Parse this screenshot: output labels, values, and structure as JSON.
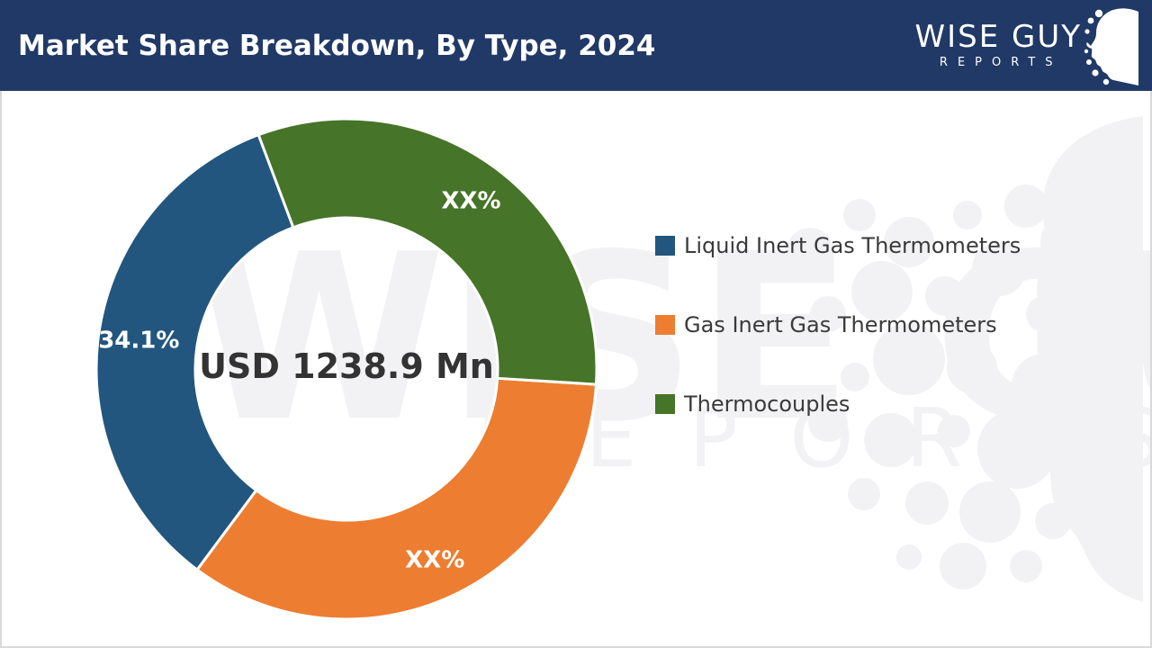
{
  "header": {
    "title": "Market Share Breakdown, By Type, 2024",
    "logo": {
      "name": "WISE GUY",
      "tagline": "REPORTS"
    }
  },
  "watermark": {
    "line1": "WISE GUY",
    "line2": "REPORTS"
  },
  "chart_data": {
    "type": "pie",
    "subtype": "donut",
    "title": "Market Share Breakdown, By Type, 2024",
    "center_label": "USD 1238.9 Mn",
    "start_angle_deg": 110.6,
    "direction": "counterclockwise",
    "donut_hole_ratio": 0.6,
    "legend_position": "right",
    "segments": [
      {
        "label": "Liquid Inert Gas Thermometers",
        "value_pct": 34.1,
        "display_label": "34.1%",
        "color": "#22567E"
      },
      {
        "label": "Gas Inert Gas Thermometers",
        "value_pct": 34.2,
        "display_label": "XX%",
        "color": "#ED7D31"
      },
      {
        "label": "Thermocouples",
        "value_pct": 31.7,
        "display_label": "XX%",
        "color": "#467428"
      }
    ]
  }
}
